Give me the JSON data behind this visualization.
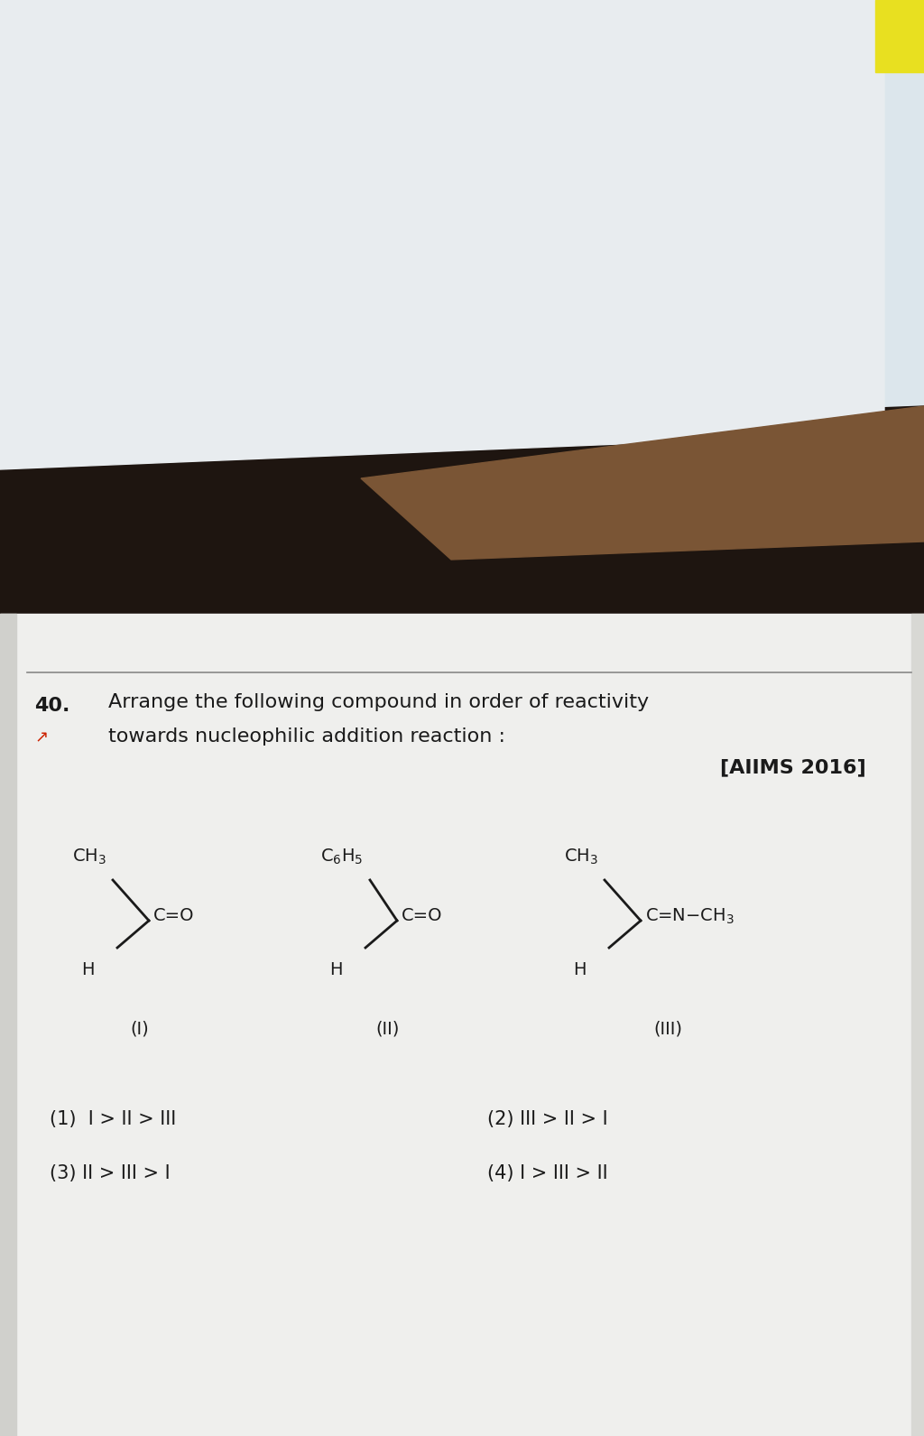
{
  "question_number": "40.",
  "question_line1": "Arrange the following compound in order of reactivity",
  "question_line2": "towards nucleophilic addition reaction :",
  "source_tag": "[AIIMS 2016]",
  "compound_I_label": "(I)",
  "compound_II_label": "(II)",
  "compound_III_label": "(III)",
  "options_left": [
    "(1)  I > II > III",
    "(3) II > III > I"
  ],
  "options_right": [
    "(2) III > II > I",
    "(4) I > III > II"
  ],
  "text_color": "#1a1a1a",
  "bond_color": "#1a1a1a",
  "font_size_question": 16,
  "font_size_options": 15,
  "font_size_labels": 14,
  "font_size_atoms": 14,
  "font_size_source": 16,
  "bg_top_light": "#dde8ef",
  "bg_top_mid": "#c8d8e2",
  "bg_desk_dark": "#2a1f14",
  "bg_desk_mid": "#6b4d30",
  "bg_desk_light": "#8b6840",
  "bg_paper": "#f0eeec",
  "yellow_tab_color": "#e8e020",
  "line_color": "#555555"
}
